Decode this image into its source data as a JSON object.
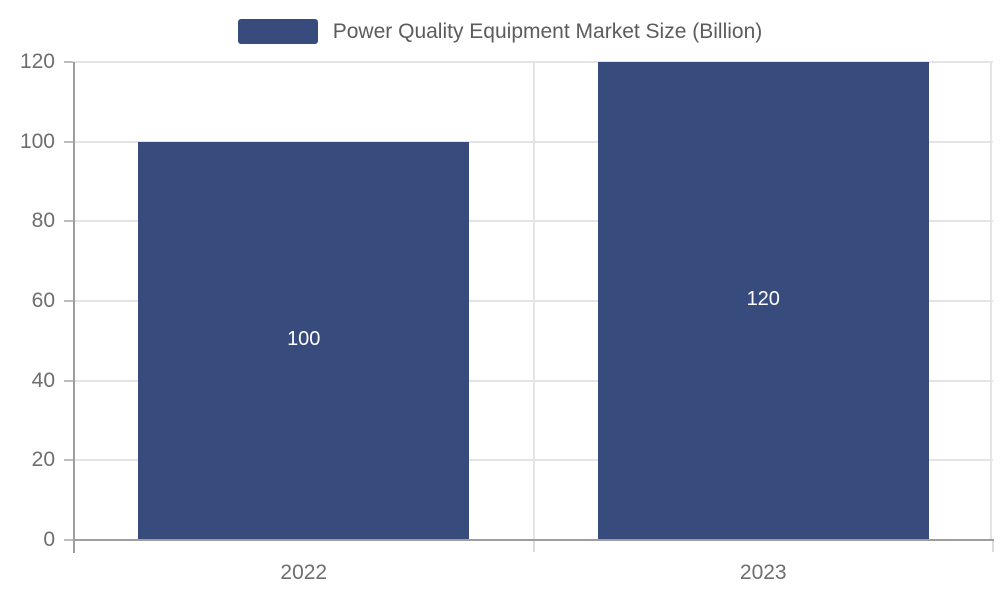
{
  "chart_data": {
    "type": "bar",
    "title": "",
    "legend": {
      "label": "Power Quality Equipment Market Size (Billion)",
      "position": "top-center"
    },
    "categories": [
      "2022",
      "2023"
    ],
    "series": [
      {
        "name": "Power Quality Equipment Market Size (Billion)",
        "values": [
          100,
          120
        ]
      }
    ],
    "value_labels": [
      "100",
      "120"
    ],
    "xlabel": "",
    "ylabel": "",
    "ylim": [
      0,
      120
    ],
    "y_ticks": [
      0,
      20,
      40,
      60,
      80,
      100,
      120
    ],
    "grid": true,
    "colors": {
      "bar": "#384B7D",
      "grid": "#E4E4E4",
      "axis": "#9E9E9E",
      "tick_mark": "#BDBDBD",
      "tick_label": "#6E6E6E",
      "legend_text": "#5C5C5C",
      "value_label": "#FFFFFF",
      "background": "#FFFFFF"
    }
  }
}
